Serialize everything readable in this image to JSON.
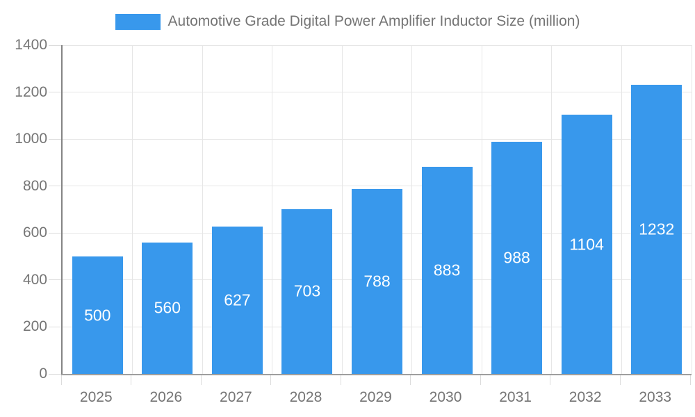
{
  "legend": {
    "label": "Automotive Grade Digital Power Amplifier Inductor Size (million)"
  },
  "colors": {
    "bar": "#3898ec",
    "grid": "#e6e6e6",
    "y_axis_line": "#848484",
    "x_axis_line": "#9e9e9e",
    "tick": "#dcdcdc",
    "text": "#757575",
    "value_label": "#ffffff"
  },
  "chart_data": {
    "type": "bar",
    "title": "Automotive Grade Digital Power Amplifier Inductor Size (million)",
    "categories": [
      "2025",
      "2026",
      "2027",
      "2028",
      "2029",
      "2030",
      "2031",
      "2032",
      "2033"
    ],
    "values": [
      500,
      560,
      627,
      703,
      788,
      883,
      988,
      1104,
      1232
    ],
    "xlabel": "",
    "ylabel": "",
    "ylim": [
      0,
      1400
    ],
    "yticks": [
      0,
      200,
      400,
      600,
      800,
      1000,
      1200,
      1400
    ],
    "grid": true,
    "legend_position": "top",
    "value_label_position": "inside-center"
  }
}
